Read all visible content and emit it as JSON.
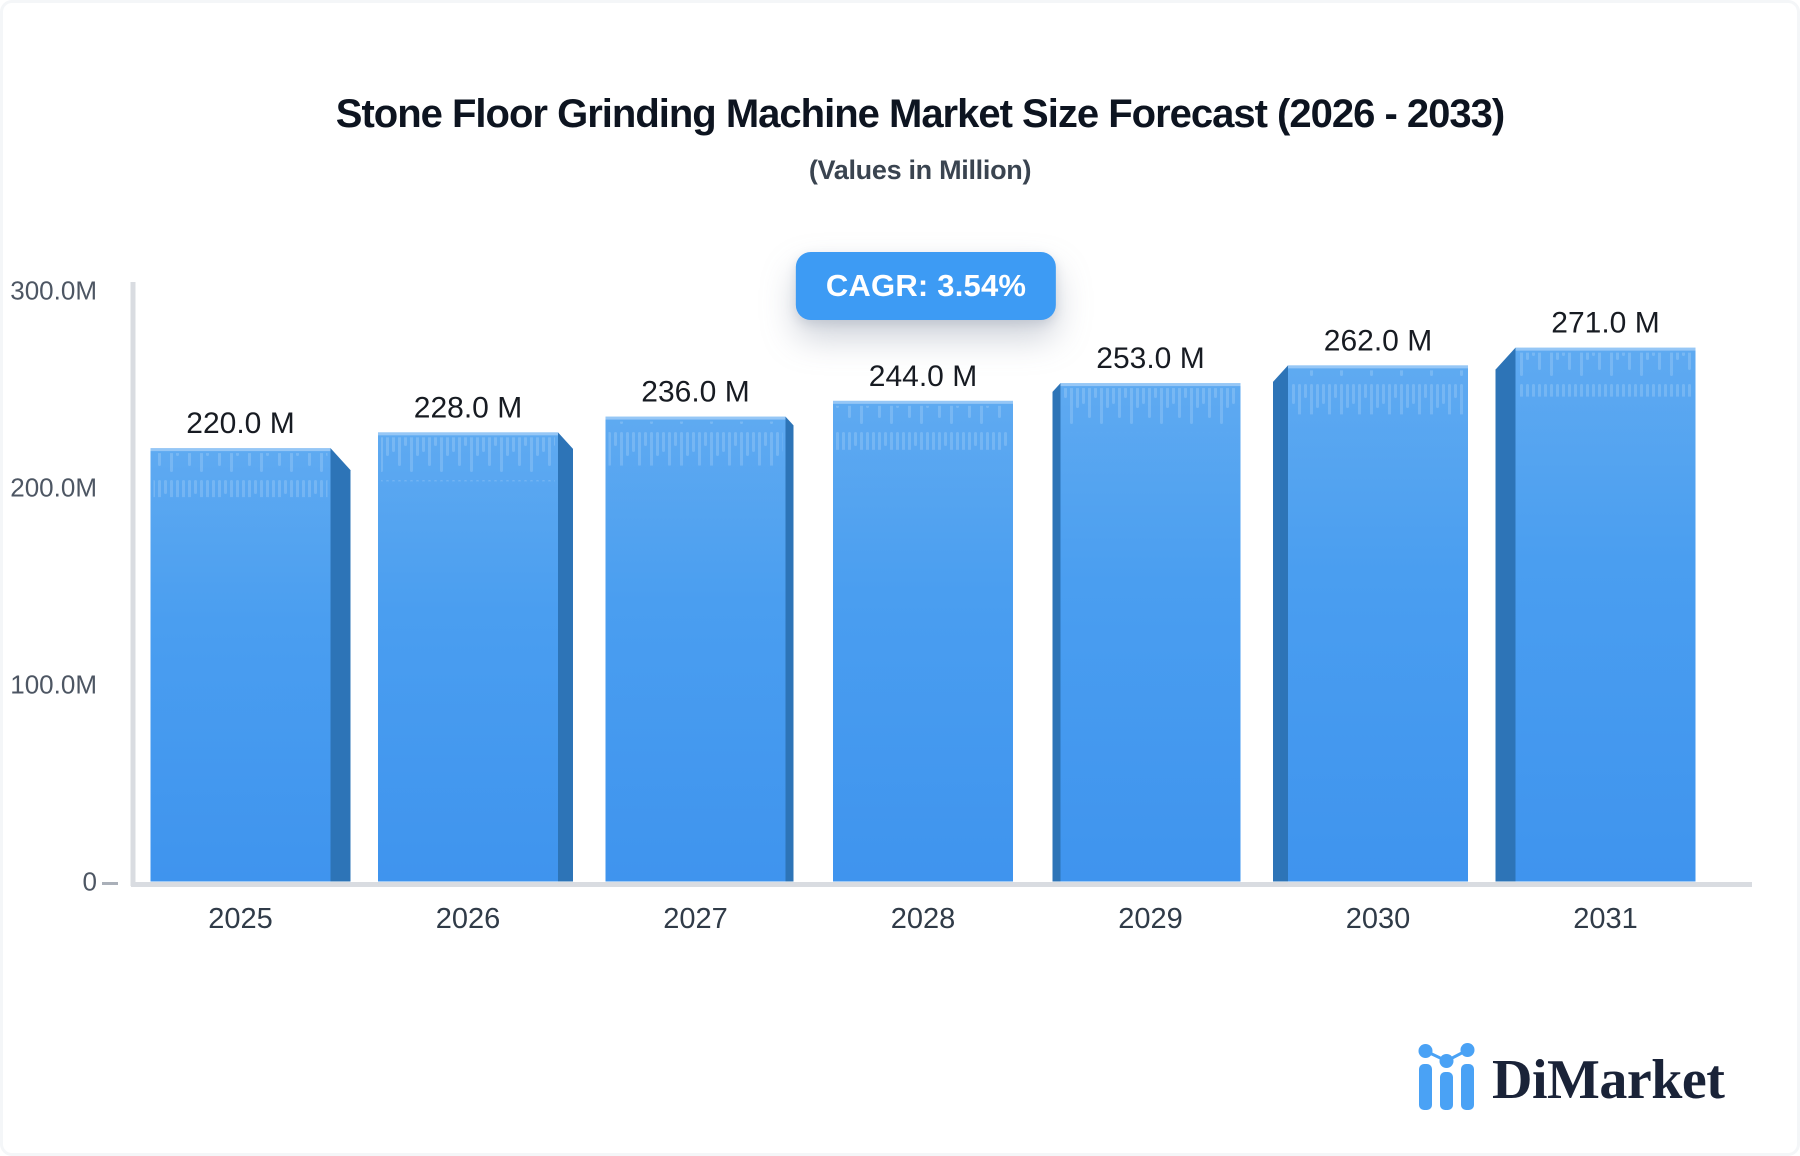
{
  "header": {
    "title": "Stone Floor Grinding Machine Market Size Forecast (2026 - 2033)",
    "subtitle": "(Values in Million)",
    "cagr_badge": "CAGR: 3.54%"
  },
  "chart_data": {
    "type": "bar",
    "title": "Stone Floor Grinding Machine Market Size Forecast (2026 - 2033)",
    "subtitle": "(Values in Million)",
    "cagr": "3.54%",
    "categories": [
      "2025",
      "2026",
      "2027",
      "2028",
      "2029",
      "2030",
      "2031"
    ],
    "values": [
      220.0,
      228.0,
      236.0,
      244.0,
      253.0,
      262.0,
      271.0
    ],
    "bar_labels": [
      "220.0 M",
      "228.0 M",
      "236.0 M",
      "244.0 M",
      "253.0 M",
      "262.0 M",
      "271.0 M"
    ],
    "unit": "Million",
    "ylim": [
      0,
      300
    ],
    "yticks": [
      {
        "value": 0,
        "label": "0"
      },
      {
        "value": 100,
        "label": "100.0M"
      },
      {
        "value": 200,
        "label": "200.0M"
      },
      {
        "value": 300,
        "label": "300.0M"
      }
    ],
    "grid": false,
    "legend": null,
    "style": {
      "face_top": "#5faaf1",
      "face_mid": "#4a9ef0",
      "face_bottom": "#3f94ee",
      "side": "#2d74b7",
      "axis": "#d9dce1",
      "tick_dash": "#aab0b9",
      "badge_blue": "#3d9bf4",
      "texture_white": "#ffffff"
    }
  },
  "logo": {
    "text": "DiMarket",
    "icon_blue": "#4aa2f5"
  }
}
